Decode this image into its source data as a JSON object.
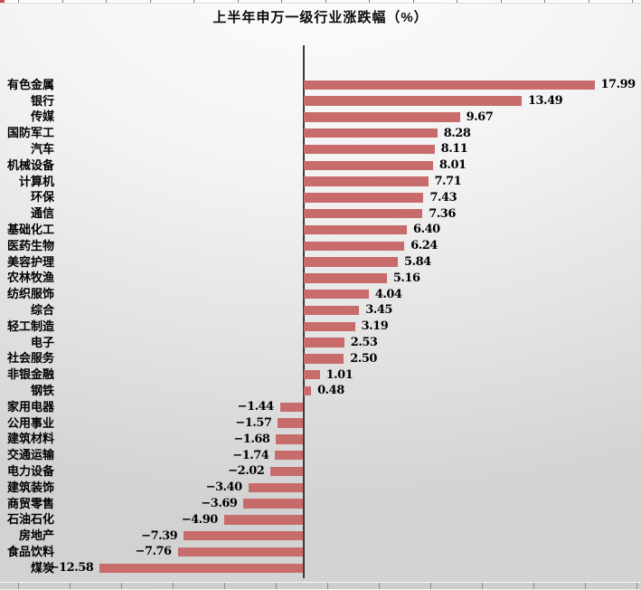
{
  "page": {
    "title": "上半年申万一级行业涨跌幅（%）"
  },
  "chart_data": {
    "type": "bar",
    "orientation": "horizontal",
    "title": "上半年申万一级行业涨跌幅（%）",
    "categories": [
      "有色金属",
      "银行",
      "传媒",
      "国防军工",
      "汽车",
      "机械设备",
      "计算机",
      "环保",
      "通信",
      "基础化工",
      "医药生物",
      "美容护理",
      "农林牧渔",
      "纺织服饰",
      "综合",
      "轻工制造",
      "电子",
      "社会服务",
      "非银金融",
      "钢铁",
      "家用电器",
      "公用事业",
      "建筑材料",
      "交通运输",
      "电力设备",
      "建筑装饰",
      "商贸零售",
      "石油石化",
      "房地产",
      "食品饮料",
      "煤炭"
    ],
    "values": [
      17.99,
      13.49,
      9.67,
      8.28,
      8.11,
      8.01,
      7.71,
      7.43,
      7.36,
      6.4,
      6.24,
      5.84,
      5.16,
      4.04,
      3.45,
      3.19,
      2.53,
      2.5,
      1.01,
      0.48,
      -1.44,
      -1.57,
      -1.68,
      -1.74,
      -2.02,
      -3.4,
      -3.69,
      -4.9,
      -7.39,
      -7.76,
      -12.58
    ],
    "value_label_decimals": 2,
    "xlabel": "",
    "ylabel": "",
    "xlim": [
      -14,
      21
    ],
    "grid": false,
    "legend_position": "none",
    "value_labels": "outside-end",
    "category_labels_position": "low-left",
    "bar_color": "#c86b6b",
    "axis_color": "#3b3b3b",
    "text_color": "#000000",
    "title_color": "#0a0a0a"
  }
}
